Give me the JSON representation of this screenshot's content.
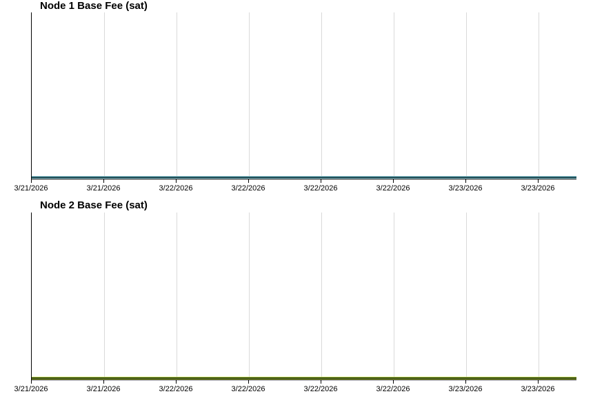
{
  "page": {
    "background_color": "#ffffff",
    "text_color": "#000000",
    "axis_color": "#000000",
    "gridline_color": "#d9d9d9"
  },
  "chart_data": [
    {
      "type": "line",
      "title": "Node 1 Base Fee (sat)",
      "x": [
        "3/21/2026",
        "3/21/2026",
        "3/22/2026",
        "3/22/2026",
        "3/22/2026",
        "3/22/2026",
        "3/23/2026",
        "3/23/2026"
      ],
      "series": [
        {
          "name": "Node 1 Base Fee (sat)",
          "values": [
            0,
            0,
            0,
            0,
            0,
            0,
            0,
            0
          ]
        }
      ],
      "xlabel": "",
      "ylabel": "",
      "y_tick_labels": [],
      "ylim": [
        0,
        null
      ],
      "grid": "vertical-only",
      "legend": "none",
      "line_core_color": "#123f47",
      "line_glow_color": "#9bd4df",
      "axis_color": "#000000",
      "gridline_color": "#d9d9d9"
    },
    {
      "type": "line",
      "title": "Node 2 Base Fee (sat)",
      "x": [
        "3/21/2026",
        "3/21/2026",
        "3/22/2026",
        "3/22/2026",
        "3/22/2026",
        "3/22/2026",
        "3/23/2026",
        "3/23/2026"
      ],
      "series": [
        {
          "name": "Node 2 Base Fee (sat)",
          "values": [
            0,
            0,
            0,
            0,
            0,
            0,
            0,
            0
          ]
        }
      ],
      "xlabel": "",
      "ylabel": "",
      "y_tick_labels": [],
      "ylim": [
        0,
        null
      ],
      "grid": "vertical-only",
      "legend": "none",
      "line_core_color": "#22350b",
      "line_glow_color": "#bfd94a",
      "axis_color": "#000000",
      "gridline_color": "#d9d9d9"
    }
  ]
}
